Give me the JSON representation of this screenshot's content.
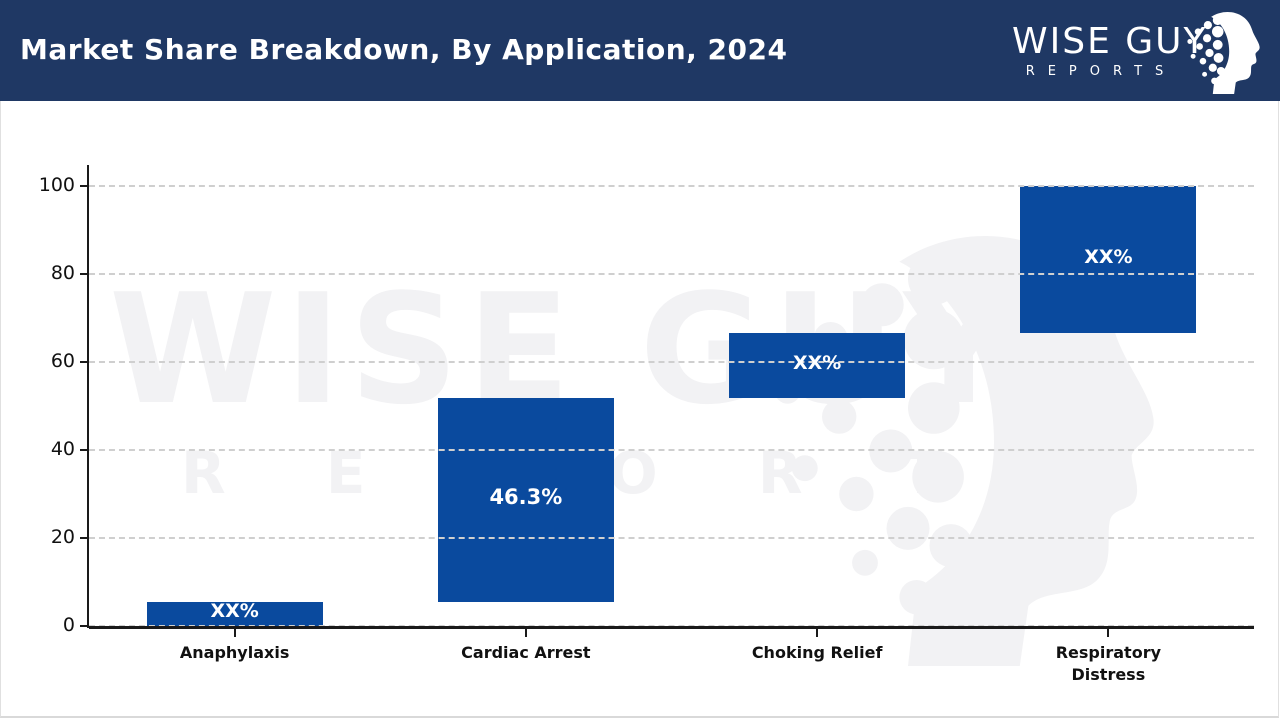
{
  "header": {
    "title": "Market Share Breakdown, By Application, 2024",
    "logo": {
      "line1": "WISE GUY",
      "line2": "REPORTS"
    }
  },
  "watermark": {
    "line1": "WISE GUY",
    "line2": "R E P O R T S"
  },
  "chart_data": {
    "type": "bar",
    "subtype": "floating-waterfall",
    "title": "Market Share Breakdown, By Application, 2024",
    "categories": [
      "Anaphylaxis",
      "Cardiac Arrest",
      "Choking Relief",
      "Respiratory Distress"
    ],
    "segments": [
      {
        "category": "Anaphylaxis",
        "start": 0,
        "end": 5.5,
        "label": "XX%"
      },
      {
        "category": "Cardiac Arrest",
        "start": 5.5,
        "end": 51.8,
        "label": "46.3%"
      },
      {
        "category": "Choking Relief",
        "start": 51.8,
        "end": 66.5,
        "label": "XX%"
      },
      {
        "category": "Respiratory Distress",
        "start": 66.5,
        "end": 100,
        "label": "XX%"
      }
    ],
    "ylim": [
      0,
      100
    ],
    "yticks": [
      0,
      20,
      40,
      60,
      80,
      100
    ],
    "xlabel": "",
    "ylabel": "",
    "grid": "horizontal-dashed",
    "legend": "none"
  },
  "colors": {
    "header_bg": "#1f3864",
    "bar": "#0a4a9e",
    "bar_label": "#ffffff",
    "grid": "#cfcfcf",
    "axis": "#1a1a1a",
    "watermark": "#f2f2f4"
  }
}
